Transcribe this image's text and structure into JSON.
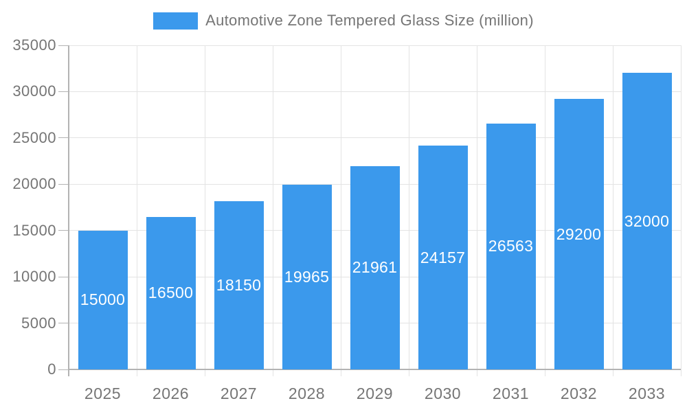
{
  "legend": {
    "label": "Automotive Zone Tempered Glass Size (million)"
  },
  "colors": {
    "bar": "#3b99ec",
    "axis_line": "#b3b3b3",
    "grid_line": "#e3e3e3",
    "axis_text": "#757575",
    "bar_label_text": "#ffffff"
  },
  "chart_data": {
    "type": "bar",
    "title": "Automotive Zone Tempered Glass Size (million)",
    "categories": [
      "2025",
      "2026",
      "2027",
      "2028",
      "2029",
      "2030",
      "2031",
      "2032",
      "2033"
    ],
    "values": [
      15000,
      16500,
      18150,
      19965,
      21961,
      24157,
      26563,
      29200,
      32000
    ],
    "xlabel": "",
    "ylabel": "",
    "ylim": [
      0,
      35000
    ],
    "ytick_step": 5000,
    "yticks": [
      0,
      5000,
      10000,
      15000,
      20000,
      25000,
      30000,
      35000
    ],
    "grid": true,
    "legend_position": "top-center",
    "data_labels": "inside-center-white"
  }
}
